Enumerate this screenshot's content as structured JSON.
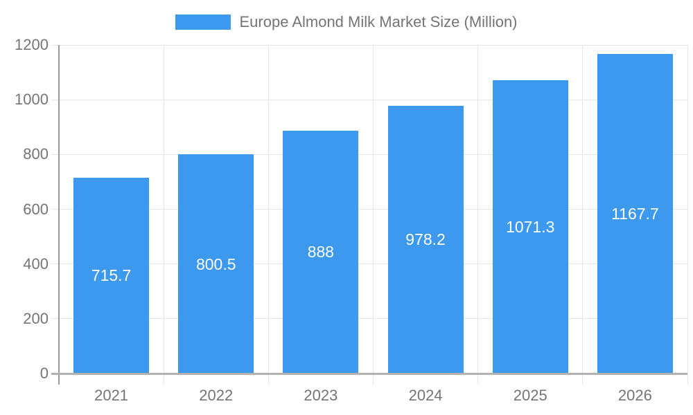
{
  "legend": {
    "label": "Europe Almond Milk Market Size (Million)"
  },
  "colors": {
    "bar": "#3d99ee",
    "grid": "#e6e6e6",
    "y_axis": "#9a9a9a",
    "baseline": "#b1b1b1",
    "tick_text": "#757575",
    "bar_label_text": "#ffffff",
    "background": "#ffffff"
  },
  "chart_data": {
    "type": "bar",
    "title": "Europe Almond Milk Market Size (Million)",
    "xlabel": "",
    "ylabel": "",
    "categories": [
      "2021",
      "2022",
      "2023",
      "2024",
      "2025",
      "2026"
    ],
    "values": [
      715.7,
      800.5,
      888,
      978.2,
      1071.3,
      1167.7
    ],
    "value_labels": [
      "715.7",
      "800.5",
      "888",
      "978.2",
      "1071.3",
      "1167.7"
    ],
    "series": [
      {
        "name": "Europe Almond Milk Market Size (Million)",
        "values": [
          715.7,
          800.5,
          888,
          978.2,
          1071.3,
          1167.7
        ]
      }
    ],
    "yticks": [
      0,
      200,
      400,
      600,
      800,
      1000,
      1200
    ],
    "ylim": [
      0,
      1200
    ],
    "grid": true,
    "legend_position": "top",
    "value_labels_position": "inside-center",
    "value_labels_color": "#ffffff"
  }
}
